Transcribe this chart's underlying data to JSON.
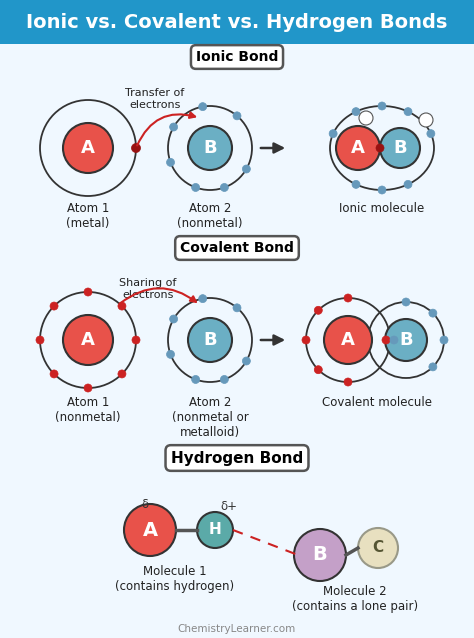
{
  "title": "Ionic vs. Covalent vs. Hydrogen Bonds",
  "title_bg": "#2196C9",
  "title_color": "#FFFFFF",
  "bg_color": "#F0F8FF",
  "atom_A_color": "#E8524A",
  "atom_B_ionic_color": "#6BAFC4",
  "atom_B_cov_color": "#6BAFC4",
  "atom_H_color": "#5BAAA8",
  "atom_B_hbond_color": "#C4A0C8",
  "atom_C_color": "#E8E0C0",
  "electron_red": "#CC2222",
  "electron_blue": "#6699BB",
  "electron_dark_red": "#991111",
  "orbit_color": "#333333",
  "arrow_color": "#333333",
  "curve_arrow_color": "#CC2222",
  "dashed_color": "#CC2222",
  "box_border": "#555555",
  "footer": "ChemistryLearner.com",
  "ionic_title": "Ionic Bond",
  "coval_title": "Covalent Bond",
  "hbond_title": "Hydrogen Bond"
}
